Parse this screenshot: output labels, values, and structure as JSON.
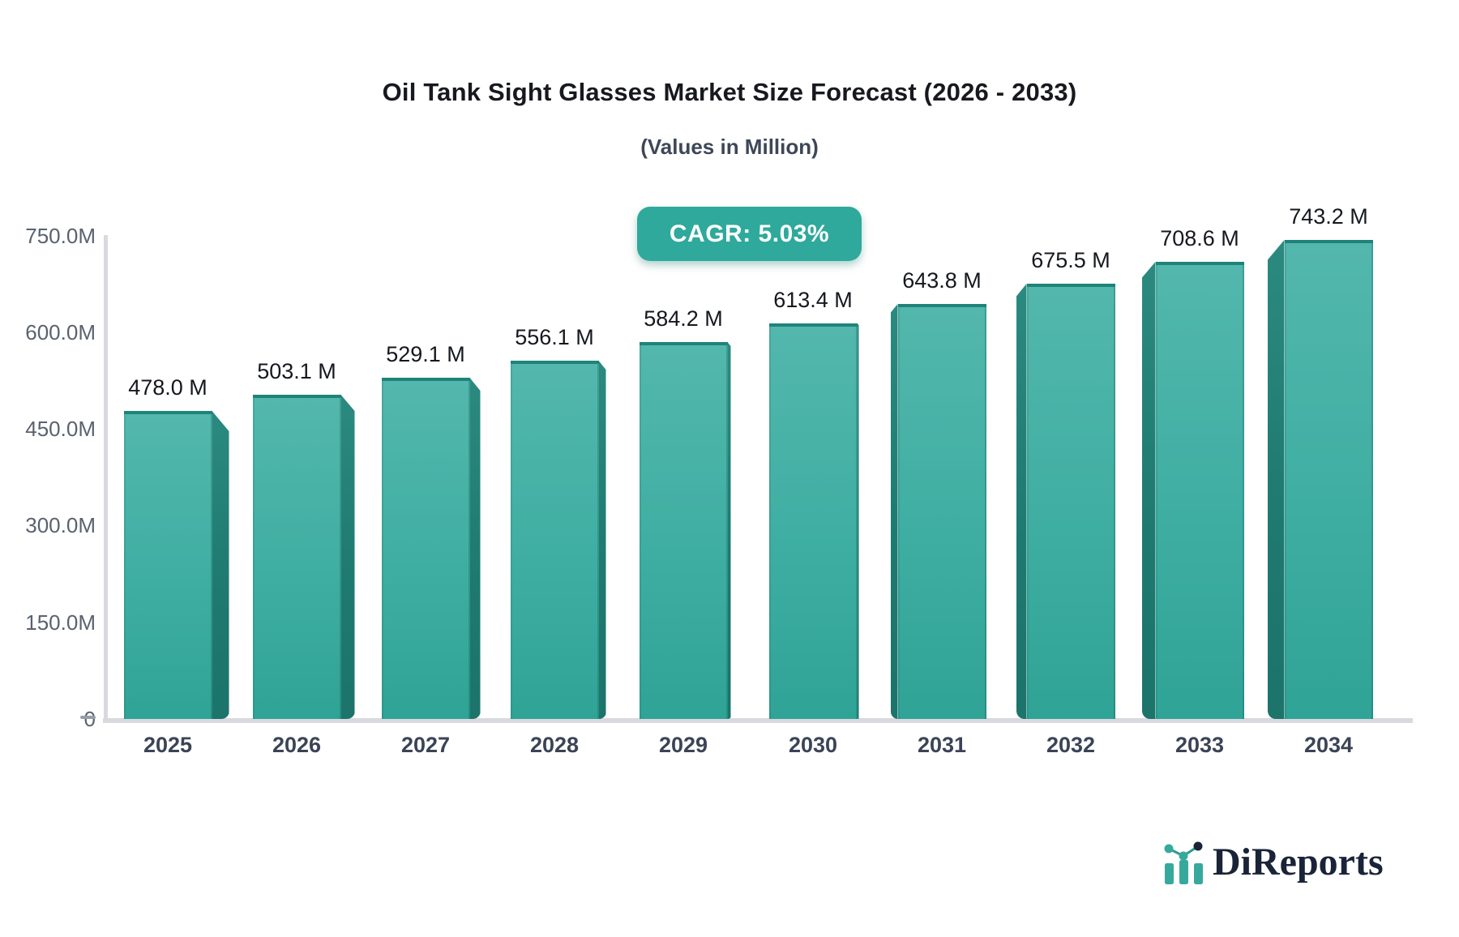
{
  "header": {
    "title": "Oil Tank Sight Glasses Market Size Forecast (2026 - 2033)",
    "subtitle": "(Values in Million)"
  },
  "cagr_badge": {
    "text": "CAGR: 5.03%"
  },
  "chart_data": {
    "type": "bar",
    "title": "Oil Tank Sight Glasses Market Size Forecast (2026 - 2033)",
    "subtitle": "(Values in Million)",
    "cagr_percent": 5.03,
    "categories": [
      "2025",
      "2026",
      "2027",
      "2028",
      "2029",
      "2030",
      "2031",
      "2032",
      "2033",
      "2034"
    ],
    "values": [
      478.0,
      503.1,
      529.1,
      556.1,
      584.2,
      613.4,
      643.8,
      675.5,
      708.6,
      743.2
    ],
    "bar_labels": [
      "478.0 M",
      "503.1 M",
      "529.1 M",
      "556.1 M",
      "584.2 M",
      "613.4 M",
      "643.8 M",
      "675.5 M",
      "708.6 M",
      "743.2 M"
    ],
    "y_ticks": [
      {
        "value": 0,
        "label": "0"
      },
      {
        "value": 150,
        "label": "150.0M"
      },
      {
        "value": 300,
        "label": "300.0M"
      },
      {
        "value": 450,
        "label": "450.0M"
      },
      {
        "value": 600,
        "label": "600.0M"
      },
      {
        "value": 750,
        "label": "750.0M"
      }
    ],
    "ylim": [
      0,
      750
    ],
    "grid": false,
    "legend": false,
    "style": "3d-perspective-bars"
  },
  "colors": {
    "bar_face_top": "#53B7AD",
    "bar_face_bottom": "#2FA396",
    "bar_side": "#1F7A71",
    "bar_top_edge": "#1F837A",
    "badge_bg": "#2FA99C",
    "axis_line": "#D8DADF",
    "y_label_text": "#5A626F",
    "x_label_text": "#3B4456",
    "value_label_text": "#15181E",
    "title_text": "#17191F",
    "subtitle_text": "#3E4757",
    "brand_navy": "#1A2438",
    "brand_teal": "#37A99C"
  },
  "branding": {
    "name": "DiReports",
    "icon": "mini-bar-line-chart-icon"
  }
}
